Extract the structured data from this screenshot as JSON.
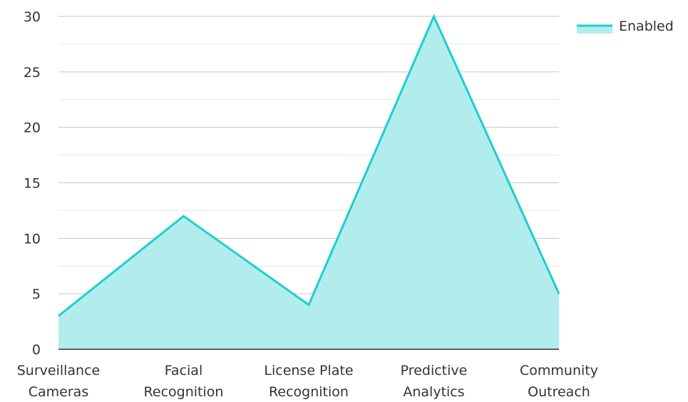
{
  "chart_data": {
    "type": "area",
    "categories": [
      [
        "Surveillance",
        "Cameras"
      ],
      [
        "Facial",
        "Recognition"
      ],
      [
        "License Plate",
        "Recognition"
      ],
      [
        "Predictive",
        "Analytics"
      ],
      [
        "Community",
        "Outreach"
      ]
    ],
    "series": [
      {
        "name": "Enabled",
        "values": [
          3,
          12,
          4,
          30,
          5
        ]
      }
    ],
    "ylim": [
      0,
      30
    ],
    "yticks": [
      "0",
      "5",
      "10",
      "15",
      "20",
      "25",
      "30"
    ],
    "grid": true,
    "legend": "top-right",
    "colors": {
      "line": "#1ccfcf",
      "fill": "#b2eded",
      "grid": "#c8c8c8",
      "axis": "#333333"
    }
  }
}
